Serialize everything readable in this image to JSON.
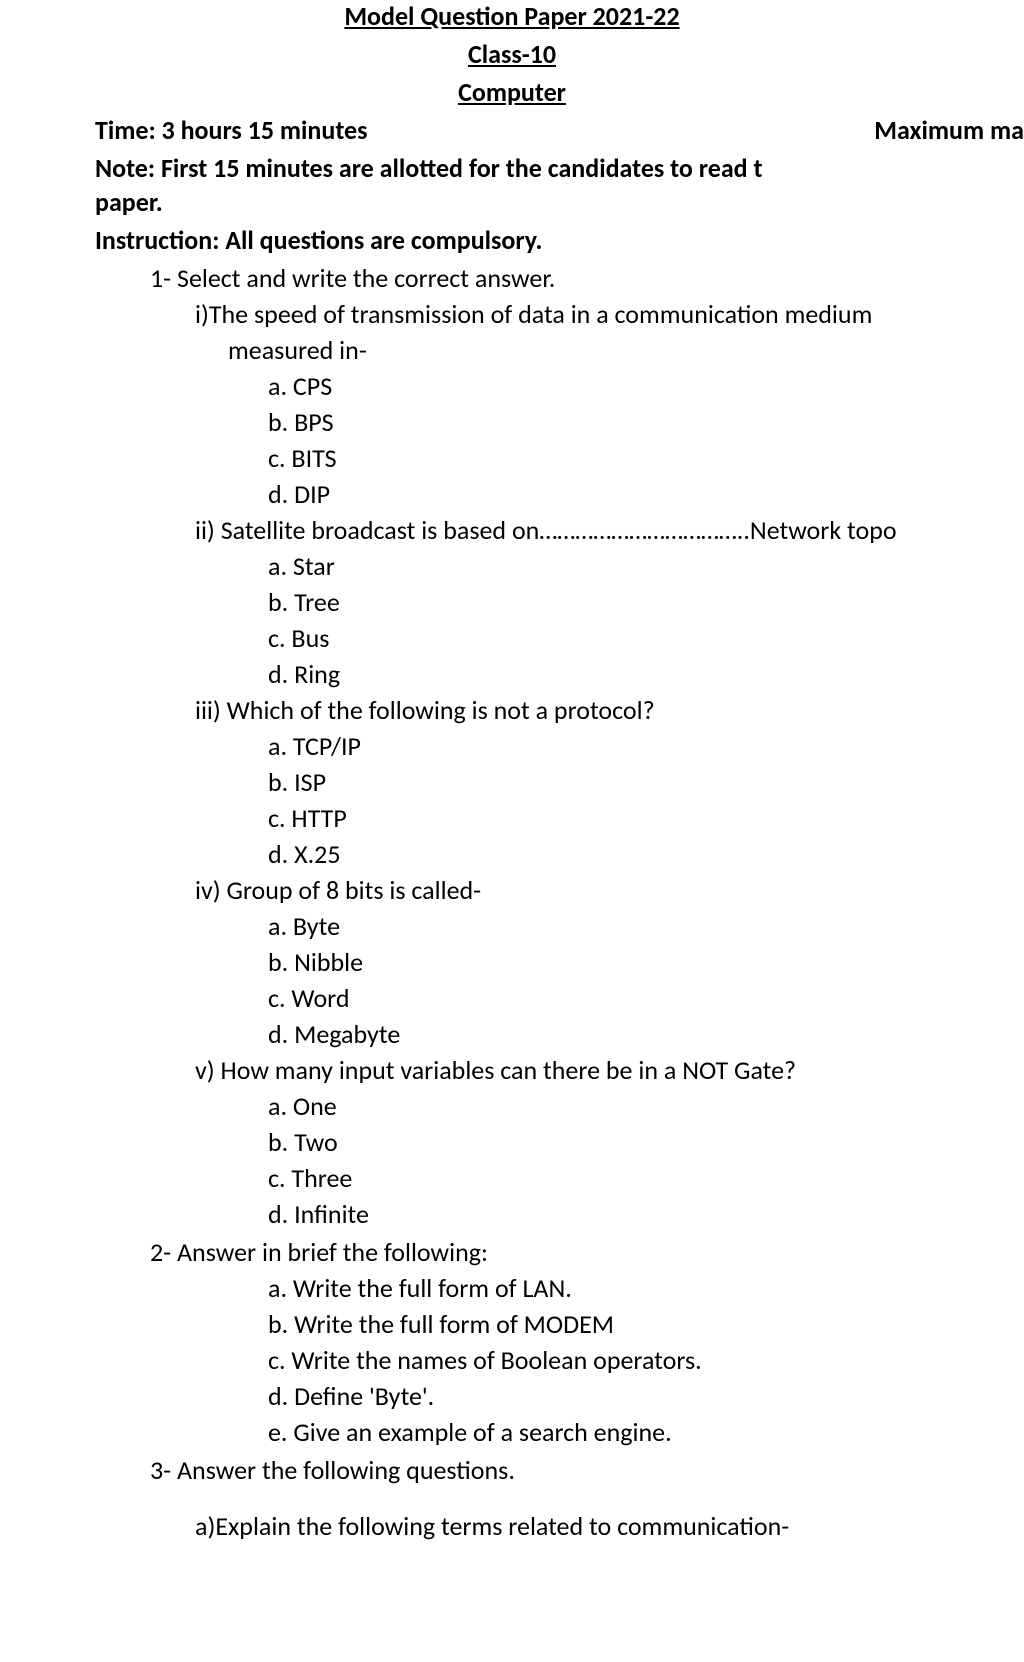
{
  "header": {
    "model_paper": "Model Question Paper 2021-22",
    "class": "Class-10",
    "subject": "Computer"
  },
  "meta": {
    "time": "Time: 3 hours 15 minutes",
    "maximum": "Maximum ma"
  },
  "note": {
    "line1": "Note: First 15 minutes are allotted for the candidates to read t",
    "line2": "paper.",
    "instruction": "Instruction: All questions are compulsory."
  },
  "q1": {
    "title": "1-  Select and write the correct answer.",
    "i": {
      "text": "i)The speed of transmission of data in a communication medium",
      "cont": "measured in-",
      "a": "a.   CPS",
      "b": "b.   BPS",
      "c": "c.   BITS",
      "d": "d.   DIP"
    },
    "ii": {
      "text": "ii) Satellite broadcast is based on……………………………..Network topo",
      "a": "a.   Star",
      "b": "b.   Tree",
      "c": "c.   Bus",
      "d": "d.   Ring"
    },
    "iii": {
      "text": "iii) Which of the following is not a protocol?",
      "a": "a.   TCP/IP",
      "b": "b.   ISP",
      "c": "c.   HTTP",
      "d": "d.   X.25"
    },
    "iv": {
      "text": "iv) Group of 8 bits is called-",
      "a": "a.   Byte",
      "b": "b.   Nibble",
      "c": "c.   Word",
      "d": "d.   Megabyte"
    },
    "v": {
      "text": "v) How many input variables can there be in a NOT Gate?",
      "a": "a.   One",
      "b": "b.   Two",
      "c": "c.   Three",
      "d": "d.   Infinite"
    }
  },
  "q2": {
    "title": "2-  Answer in brief the following:",
    "a": "a.   Write the full form of LAN.",
    "b": "b.   Write the full form of MODEM",
    "c": "c.   Write the names of Boolean operators.",
    "d": "d.   Define 'Byte'.",
    "e": "e.   Give an example of a search engine."
  },
  "q3": {
    "title": "3-  Answer the following questions.",
    "a": "a)Explain the following terms related to communication-"
  }
}
